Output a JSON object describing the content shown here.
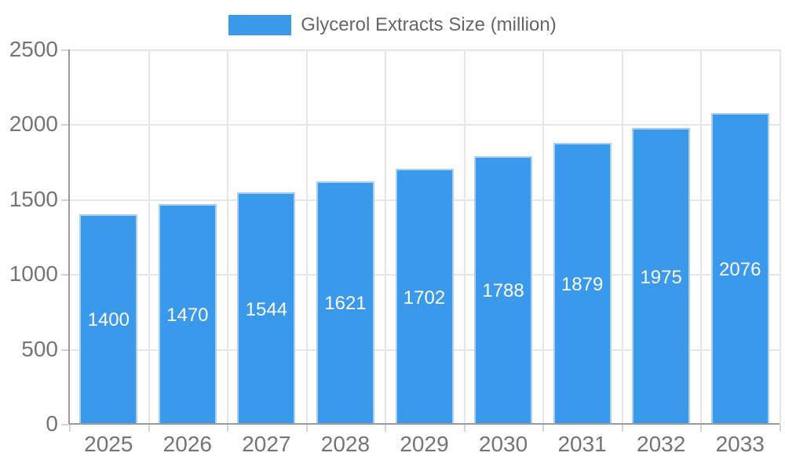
{
  "legend": {
    "label": "Glycerol Extracts Size (million)"
  },
  "chart_data": {
    "type": "bar",
    "title": "Glycerol Extracts Size (million)",
    "categories": [
      "2025",
      "2026",
      "2027",
      "2028",
      "2029",
      "2030",
      "2031",
      "2032",
      "2033"
    ],
    "values": [
      1400,
      1470,
      1544,
      1621,
      1702,
      1788,
      1879,
      1975,
      2076
    ],
    "series": [
      {
        "name": "Glycerol Extracts Size (million)",
        "values": [
          1400,
          1470,
          1544,
          1621,
          1702,
          1788,
          1879,
          1975,
          2076
        ]
      }
    ],
    "xlabel": "",
    "ylabel": "",
    "ylim": [
      0,
      2500
    ],
    "yticks": [
      0,
      500,
      1000,
      1500,
      2000,
      2500
    ],
    "grid": true,
    "legend_position": "top-center",
    "bar_labels_inside": true,
    "colors": {
      "bar": "#3b99ec",
      "bar_border": "#a9cff3",
      "bar_label_text": "#ffffff",
      "axis_line": "#9a9a9a",
      "gridline": "#e6e6e6",
      "tick": "#d4d4d4",
      "tick_label": "#757575",
      "legend_text": "#666666",
      "background": "#ffffff"
    }
  }
}
